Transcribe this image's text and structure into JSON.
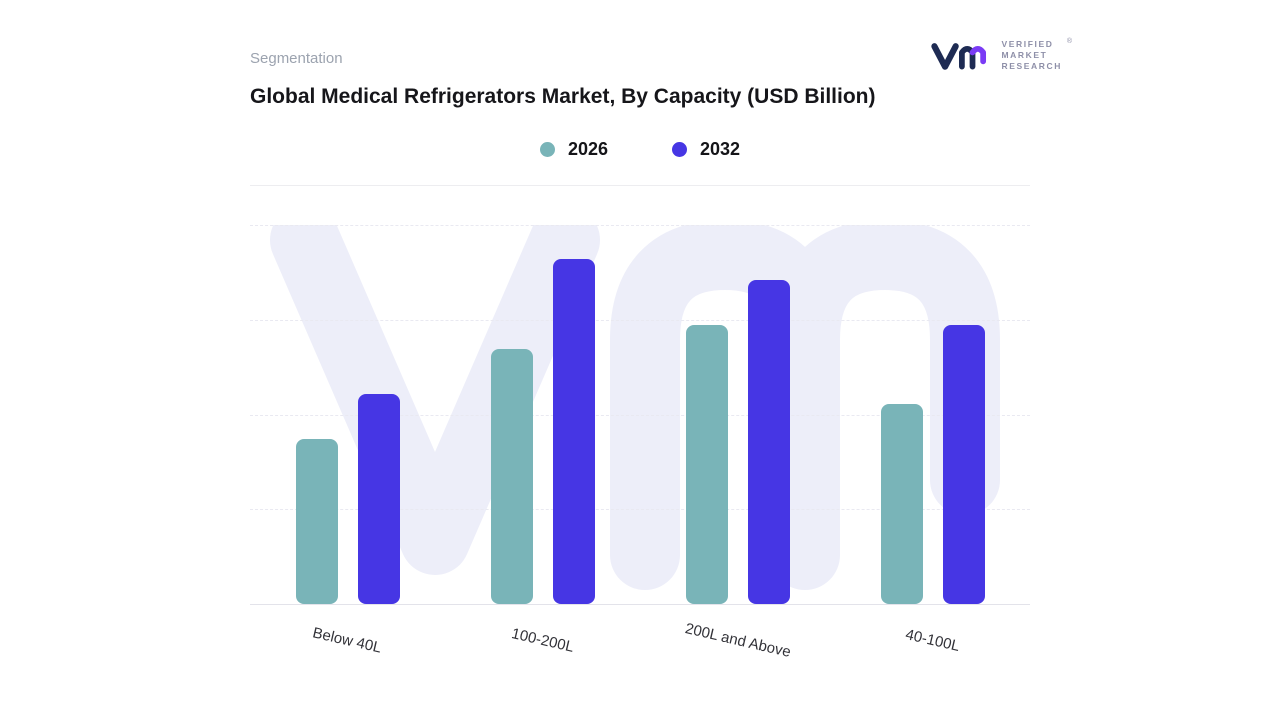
{
  "header": {
    "eyebrow": "Segmentation",
    "title": "Global Medical Refrigerators Market, By Capacity (USD Billion)",
    "logo": {
      "lines": [
        "VERIFIED",
        "MARKET",
        "RESEARCH"
      ],
      "registered": "®"
    }
  },
  "chart_data": {
    "type": "bar",
    "title": "Global Medical Refrigerators Market, By Capacity (USD Billion)",
    "categories": [
      "Below 40L",
      "100-200L",
      "200L and Above",
      "40-100L"
    ],
    "series": [
      {
        "name": "2026",
        "color": "#79B4B8",
        "values": [
          48,
          74,
          81,
          58
        ]
      },
      {
        "name": "2032",
        "color": "#4636E4",
        "values": [
          61,
          100,
          94,
          81
        ]
      }
    ],
    "ylim": [
      0,
      110
    ],
    "grid": "horizontal-dashed",
    "legend_position": "top-center",
    "watermark": "vm",
    "colors": {
      "series_2026": "#79B4B8",
      "series_2032": "#4636E4",
      "watermark": "#EDEEF9"
    }
  }
}
